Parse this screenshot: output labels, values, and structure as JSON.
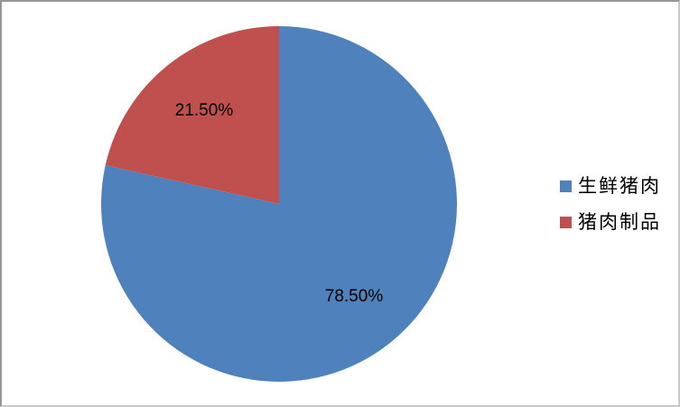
{
  "chart_data": {
    "type": "pie",
    "title": "",
    "legend_position": "right",
    "direction": "clockwise",
    "start_angle_deg": 0,
    "background": "#FFFFFF",
    "label_color": "#000000",
    "slices": [
      {
        "label": "生鲜猪肉",
        "value": 78.5,
        "display": "78.50%",
        "color": "#4F81BD"
      },
      {
        "label": "猪肉制品",
        "value": 21.5,
        "display": "21.50%",
        "color": "#C0504D"
      }
    ]
  }
}
